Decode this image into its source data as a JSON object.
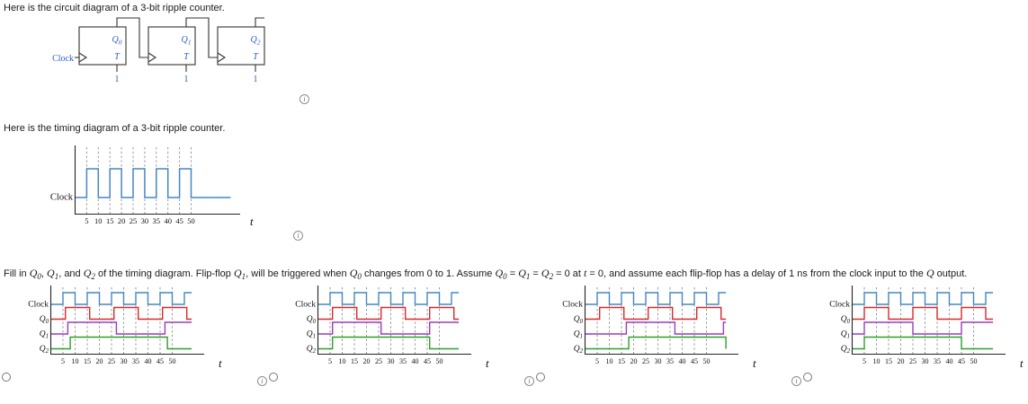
{
  "intro": {
    "circuit_text": "Here is the circuit diagram of a 3-bit ripple counter.",
    "timing_text": "Here is the timing diagram of a 3-bit ripple counter."
  },
  "circuit": {
    "clock_label": "Clock",
    "flipflops": [
      {
        "q": "Q",
        "q_sub": "0",
        "t": "T",
        "input": "1"
      },
      {
        "q": "Q",
        "q_sub": "1",
        "t": "T",
        "input": "1"
      },
      {
        "q": "Q",
        "q_sub": "2",
        "t": "T",
        "input": "1"
      }
    ]
  },
  "question_html": "Fill in <i>Q</i><sub>0</sub>, <i>Q</i><sub>1</sub>, and <i>Q</i><sub>2</sub> of the timing diagram. Flip-flop <i>Q</i><sub>1</sub>, will be triggered when <i>Q</i><sub>0</sub> changes from 0 to 1. Assume <i>Q</i><sub>0</sub> = <i>Q</i><sub>1</sub> = <i>Q</i><sub>2</sub> = 0 at <i>t</i> = 0, and assume each flip-flop has a delay of 1 ns from the clock input to the <i>Q</i> output.",
  "main_timing": {
    "type": "timing-waveform",
    "ticks": [
      5,
      10,
      15,
      20,
      25,
      30,
      35,
      40,
      45,
      50
    ],
    "t_axis_label": "t",
    "t_end": 67,
    "signals": [
      {
        "name": "Clock",
        "sub": "",
        "color": "#4487c5",
        "initial_level": 0,
        "toggles_ns": [
          5,
          10,
          15,
          20,
          25,
          30,
          35,
          40,
          45,
          50
        ]
      }
    ]
  },
  "options": [
    {
      "id": 1,
      "selected": false,
      "diagram": {
        "type": "timing-waveform",
        "ticks": [
          5,
          10,
          15,
          20,
          25,
          30,
          35,
          40,
          45,
          50
        ],
        "t_axis_label": "t",
        "t_end": 58,
        "signals": [
          {
            "name": "Clock",
            "sub": "",
            "color": "#4487c5",
            "initial_level": 0,
            "toggles_ns": [
              5,
              10,
              15,
              20,
              25,
              30,
              35,
              40,
              45,
              50,
              55
            ]
          },
          {
            "name": "Q",
            "sub": "0",
            "color": "#d62b2b",
            "initial_level": 0,
            "toggles_ns": [
              6,
              16,
              26,
              36,
              46,
              56
            ]
          },
          {
            "name": "Q",
            "sub": "1",
            "color": "#9b3bbf",
            "initial_level": 0,
            "toggles_ns": [
              7,
              27,
              47
            ]
          },
          {
            "name": "Q",
            "sub": "2",
            "color": "#2ca02c",
            "initial_level": 0,
            "toggles_ns": [
              8,
              48
            ]
          }
        ]
      }
    },
    {
      "id": 2,
      "selected": false,
      "diagram": {
        "type": "timing-waveform",
        "ticks": [
          5,
          10,
          15,
          20,
          25,
          30,
          35,
          40,
          45,
          50
        ],
        "t_axis_label": "t",
        "t_end": 58,
        "signals": [
          {
            "name": "Clock",
            "sub": "",
            "color": "#4487c5",
            "initial_level": 0,
            "toggles_ns": [
              5,
              10,
              15,
              20,
              25,
              30,
              35,
              40,
              45,
              50,
              55
            ]
          },
          {
            "name": "Q",
            "sub": "0",
            "color": "#d62b2b",
            "initial_level": 0,
            "toggles_ns": [
              6,
              16,
              26,
              36,
              46,
              56
            ]
          },
          {
            "name": "Q",
            "sub": "1",
            "color": "#9b3bbf",
            "initial_level": 0,
            "toggles_ns": [
              6,
              26,
              46
            ]
          },
          {
            "name": "Q",
            "sub": "2",
            "color": "#2ca02c",
            "initial_level": 0,
            "toggles_ns": [
              6,
              46
            ]
          }
        ]
      }
    },
    {
      "id": 3,
      "selected": false,
      "diagram": {
        "type": "timing-waveform",
        "ticks": [
          5,
          10,
          15,
          20,
          25,
          30,
          35,
          40,
          45,
          50
        ],
        "t_axis_label": "t",
        "t_end": 58,
        "signals": [
          {
            "name": "Clock",
            "sub": "",
            "color": "#4487c5",
            "initial_level": 0,
            "toggles_ns": [
              5,
              10,
              15,
              20,
              25,
              30,
              35,
              40,
              45,
              50,
              55
            ]
          },
          {
            "name": "Q",
            "sub": "0",
            "color": "#d62b2b",
            "initial_level": 0,
            "toggles_ns": [
              6,
              16,
              26,
              36,
              46,
              56
            ]
          },
          {
            "name": "Q",
            "sub": "1",
            "color": "#9b3bbf",
            "initial_level": 0,
            "toggles_ns": [
              17,
              37,
              57
            ]
          },
          {
            "name": "Q",
            "sub": "2",
            "color": "#2ca02c",
            "initial_level": 0,
            "toggles_ns": [
              18,
              58
            ]
          }
        ]
      }
    },
    {
      "id": 4,
      "selected": false,
      "diagram": {
        "type": "timing-waveform",
        "ticks": [
          5,
          10,
          15,
          20,
          25,
          30,
          35,
          40,
          45,
          50
        ],
        "t_axis_label": "t",
        "t_end": 58,
        "signals": [
          {
            "name": "Clock",
            "sub": "",
            "color": "#4487c5",
            "initial_level": 0,
            "toggles_ns": [
              5,
              10,
              15,
              20,
              25,
              30,
              35,
              40,
              45,
              50,
              55
            ]
          },
          {
            "name": "Q",
            "sub": "0",
            "color": "#d62b2b",
            "initial_level": 0,
            "toggles_ns": [
              5,
              15,
              25,
              35,
              45,
              55
            ]
          },
          {
            "name": "Q",
            "sub": "1",
            "color": "#9b3bbf",
            "initial_level": 0,
            "toggles_ns": [
              5,
              25,
              45
            ]
          },
          {
            "name": "Q",
            "sub": "2",
            "color": "#2ca02c",
            "initial_level": 0,
            "toggles_ns": [
              5,
              45
            ]
          }
        ]
      }
    }
  ]
}
